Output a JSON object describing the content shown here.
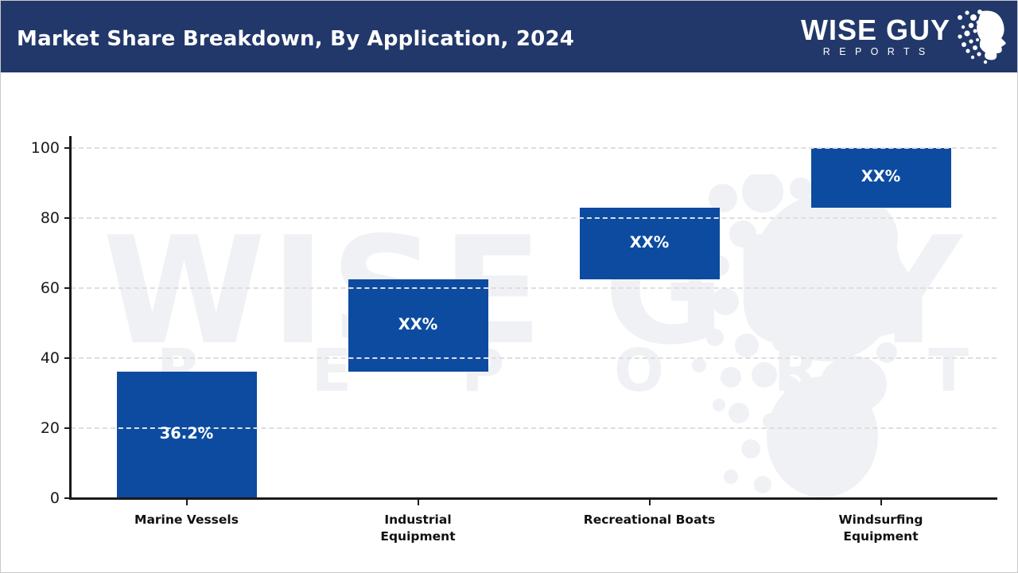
{
  "header": {
    "title": "Market Share Breakdown, By Application, 2024",
    "logo": {
      "name": "WISE GUY",
      "tagline": "R E P O R T S"
    }
  },
  "watermark": {
    "text": "WISE GUY",
    "tagline": "R E P O R T S"
  },
  "chart_data": {
    "type": "bar",
    "subtype": "floating_segment_waterfall",
    "title": "Market Share Breakdown, By Application, 2024",
    "categories": [
      "Marine Vessels",
      "Industrial Equipment",
      "Recreational Boats",
      "Windsurfing Equipment"
    ],
    "categories_display": [
      [
        "Marine Vessels"
      ],
      [
        "Industrial",
        "Equipment"
      ],
      [
        "Recreational Boats"
      ],
      [
        "Windsurfing",
        "Equipment"
      ]
    ],
    "segments": [
      {
        "category": "Marine Vessels",
        "start": 0,
        "end": 36.2,
        "label": "36.2%"
      },
      {
        "category": "Industrial Equipment",
        "start": 36.2,
        "end": 62.4,
        "label": "XX%"
      },
      {
        "category": "Recreational Boats",
        "start": 62.4,
        "end": 83.0,
        "label": "XX%"
      },
      {
        "category": "Windsurfing Equipment",
        "start": 83.0,
        "end": 100,
        "label": "XX%"
      }
    ],
    "ylim": [
      0,
      100
    ],
    "y_ticks": [
      0,
      20,
      40,
      60,
      80,
      100
    ],
    "grid": "horizontal-dashed",
    "legend": "none",
    "bar_color": "#0c4ba0",
    "bar_label_color": "#ffffff",
    "axis_color": "#1a1a1a",
    "gridline_color": "#dedede"
  },
  "colors": {
    "header_bg": "#22386a",
    "background": "#ffffff",
    "watermark": "#f0f1f4"
  }
}
